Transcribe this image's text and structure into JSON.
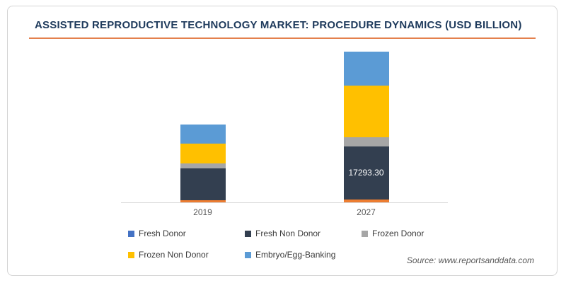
{
  "title": "ASSISTED REPRODUCTIVE TECHNOLOGY MARKET: PROCEDURE DYNAMICS (USD BILLION)",
  "source": "Source: www.reportsanddata.com",
  "colors": {
    "title_text": "#1e3a5c",
    "title_underline": "#e4804d",
    "axis_line": "#d9d9d9",
    "tick_text": "#595959",
    "legend_text": "#3a3a3a",
    "bar_label_text": "#ffffff"
  },
  "chart_data": {
    "type": "bar",
    "stacked": true,
    "title": "ASSISTED REPRODUCTIVE TECHNOLOGY MARKET: PROCEDURE DYNAMICS (USD BILLION)",
    "categories": [
      "2019",
      "2027"
    ],
    "series": [
      {
        "name": "Fresh Donor",
        "legend_color": "#4472c4",
        "bar_color": "#ed7d31",
        "values": [
          700,
          950
        ],
        "labels": [
          "",
          ""
        ]
      },
      {
        "name": "Fresh Non Donor",
        "legend_color": "#333f50",
        "bar_color": "#333f50",
        "values": [
          10400,
          17293.3
        ],
        "labels": [
          "",
          "17293.30"
        ]
      },
      {
        "name": "Frozen Donor",
        "legend_color": "#a6a6a6",
        "bar_color": "#a6a6a6",
        "values": [
          1600,
          3000
        ],
        "labels": [
          "",
          ""
        ]
      },
      {
        "name": "Frozen Non Donor",
        "legend_color": "#ffc000",
        "bar_color": "#ffc000",
        "values": [
          6400,
          16800
        ],
        "labels": [
          "",
          ""
        ]
      },
      {
        "name": "Embryo/Egg-Banking",
        "legend_color": "#5b9bd5",
        "bar_color": "#5b9bd5",
        "values": [
          6200,
          11000
        ],
        "labels": [
          "",
          ""
        ]
      }
    ],
    "value_axis_visible": false,
    "grid": false,
    "legend_position": "bottom",
    "data_label_shown": "17293.30"
  }
}
